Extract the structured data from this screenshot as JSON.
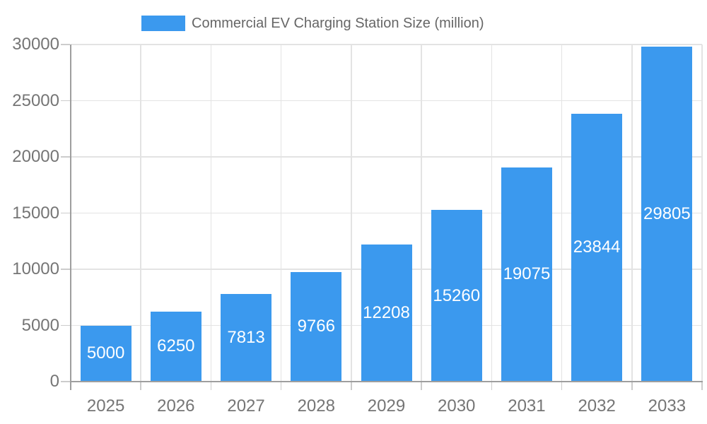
{
  "chart_data": {
    "type": "bar",
    "title": "Commercial EV Charging Station Size (million)",
    "categories": [
      "2025",
      "2026",
      "2027",
      "2028",
      "2029",
      "2030",
      "2031",
      "2032",
      "2033"
    ],
    "values": [
      5000,
      6250,
      7813,
      9766,
      12208,
      15260,
      19075,
      23844,
      29805
    ],
    "bar_value_labels": [
      "5000",
      "6250",
      "7813",
      "9766",
      "12208",
      "15260",
      "19075",
      "23844",
      "29805"
    ],
    "xlabel": "",
    "ylabel": "",
    "ylim": [
      0,
      30000
    ],
    "y_ticks": [
      0,
      5000,
      10000,
      15000,
      20000,
      25000,
      30000
    ],
    "y_tick_labels": [
      "0",
      "5000",
      "10000",
      "15000",
      "20000",
      "25000",
      "30000"
    ],
    "legend_position": "top",
    "grid": true,
    "bar_labels_inside": true
  },
  "colors": {
    "bar_fill": "#3b99ee",
    "bar_value_label": "#ffffff",
    "legend_swatch": "#3b99ee",
    "title_text": "#666666",
    "tick_label_text": "#757575",
    "axis_line": "#9e9e9e",
    "grid_line": "#e3e3e3",
    "tick_mark": "#cccccc",
    "background": "#ffffff"
  }
}
